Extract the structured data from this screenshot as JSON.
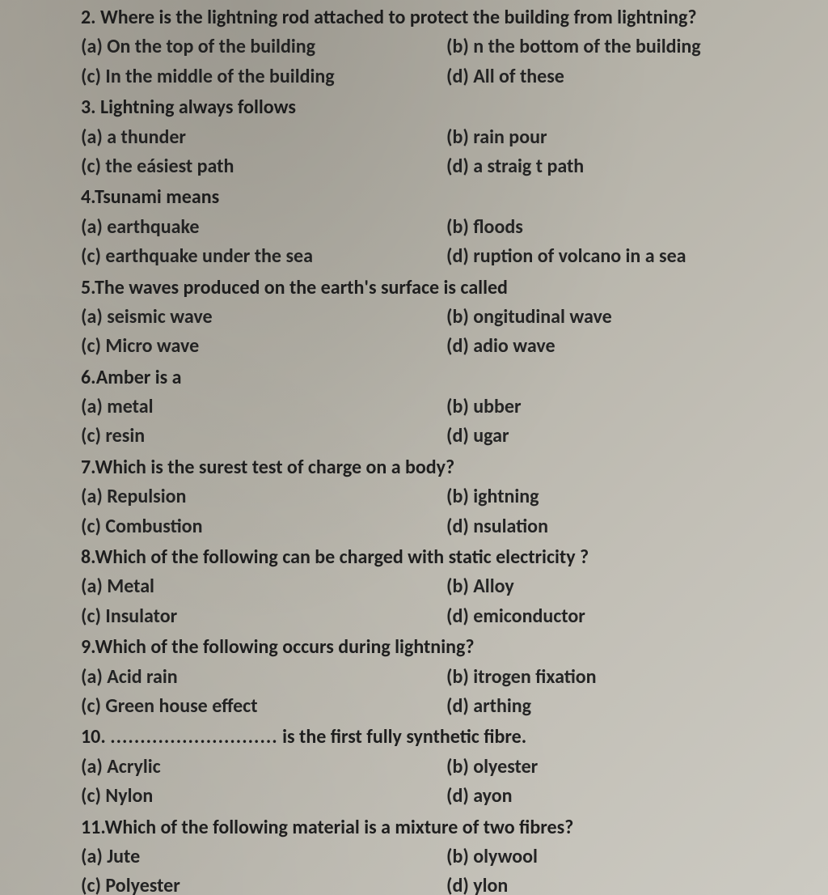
{
  "questions": [
    {
      "num": "2.",
      "text": "Where is the lightning rod attached to protect the building from lightning?",
      "opts": {
        "a": "(a) On the top of the building",
        "b": "(b)  n the bottom of the building",
        "c": "(c) In the middle of the building",
        "d": "(d) All of these"
      }
    },
    {
      "num": "3.",
      "text": "Lightning always follows",
      "opts": {
        "a": "(a) a thunder",
        "b": "(b) rain pour",
        "c": "(c) the eásiest path",
        "d": "(d) a straig  t path"
      }
    },
    {
      "num": "4.",
      "text": "Tsunami means",
      "opts": {
        "a": "(a) earthquake",
        "b": "(b) floods",
        "c": "(c) earthquake under the sea",
        "d": "(d)  ruption of volcano in a sea"
      }
    },
    {
      "num": "5.",
      "text": "The waves produced on the earth's surface is called",
      "opts": {
        "a": "(a) seismic wave",
        "b": "(b)  ongitudinal wave",
        "c": "(c) Micro wave",
        "d": "(d)  adio wave"
      }
    },
    {
      "num": "6.",
      "text": "Amber is a",
      "opts": {
        "a": "(a) metal",
        "b": "(b)  ubber",
        "c": "(c) resin",
        "d": "(d)  ugar"
      }
    },
    {
      "num": "7.",
      "text": "Which is the surest test of charge on a body?",
      "opts": {
        "a": "(a) Repulsion",
        "b": "(b)  ightning",
        "c": "(c) Combustion",
        "d": "(d)  nsulation"
      }
    },
    {
      "num": "8.",
      "text": "Which of the following can be charged with static electricity ?",
      "opts": {
        "a": "(a) Metal",
        "b": "(b) Alloy",
        "c": "(c) Insulator",
        "d": "(d)  emiconductor"
      }
    },
    {
      "num": "9.",
      "text": "Which of the following occurs during lightning?",
      "opts": {
        "a": "(a) Acid rain",
        "b": "(b)  itrogen fixation",
        "c": "(c) Green house effect",
        "d": "(d)  arthing"
      }
    },
    {
      "num": "10.",
      "text_prefix": "",
      "dots": "............................",
      "text_suffix": " is the first fully synthetic fibre.",
      "opts": {
        "a": "(a)  Acrylic",
        "b": "(b)  olyester",
        "c": "(c) Nylon",
        "d": "(d)  ayon"
      }
    },
    {
      "num": "11.",
      "text": "Which of the following material is a mixture of two fibres?",
      "opts": {
        "a": "(a) Jute",
        "b": "(b)  olywool",
        "c": "(c) Polyester",
        "d": "(d)  ylon"
      }
    }
  ]
}
